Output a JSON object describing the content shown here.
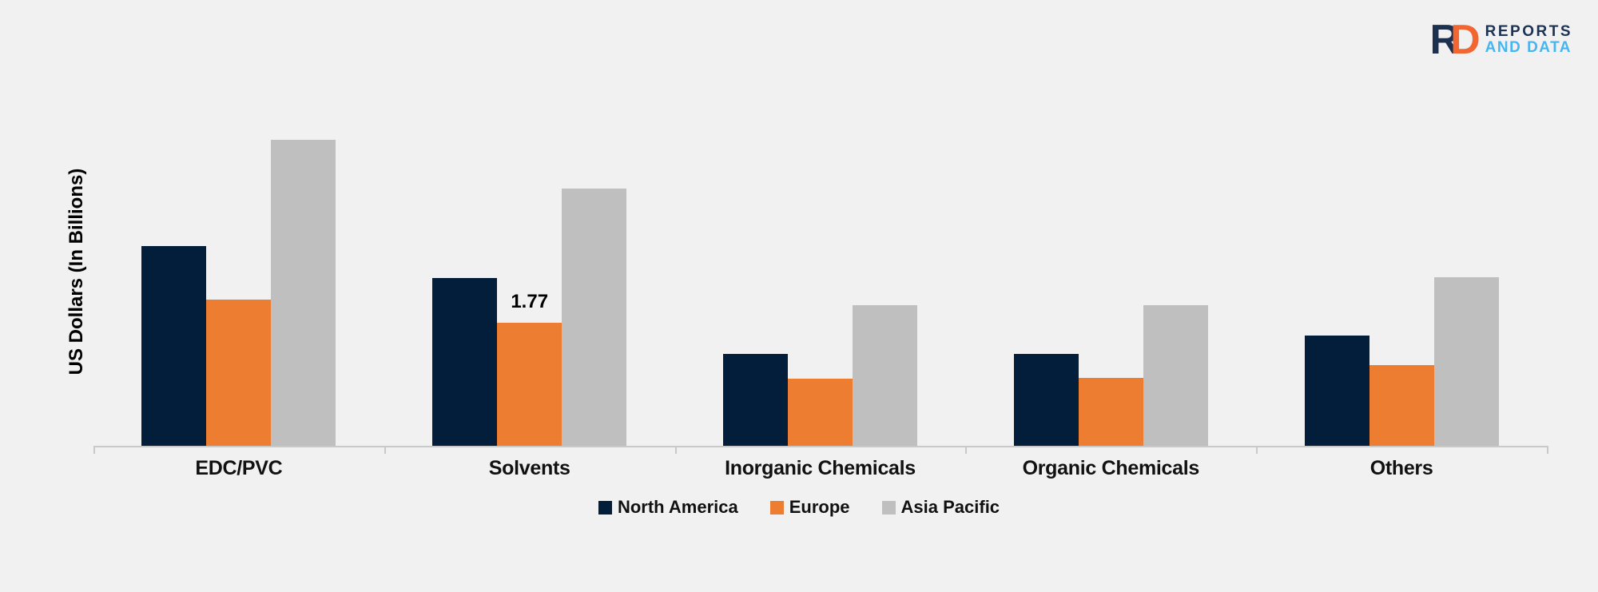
{
  "background": "#f1f1f2",
  "logo": {
    "mark_r": "R",
    "mark_d": "D",
    "line1": "REPORTS",
    "line2": "AND DATA",
    "colors": {
      "mark_r": "#1c3150",
      "mark_d": "#f26631",
      "line1": "#1c3353",
      "line2": "#45b6ef"
    }
  },
  "chart_data": {
    "type": "bar",
    "title": "",
    "xlabel": "",
    "ylabel": "US Dollars (In Billions)",
    "ylim": [
      0,
      4.6
    ],
    "grid": false,
    "legend_position": "bottom",
    "axis_color": "#c9c9c9",
    "categories": [
      "EDC/PVC",
      "Solvents",
      "Inorganic Chemicals",
      "Organic Chemicals",
      "Others"
    ],
    "series": [
      {
        "name": "North America",
        "color": "#031e3b",
        "values": [
          2.87,
          2.41,
          1.32,
          1.32,
          1.59
        ]
      },
      {
        "name": "Europe",
        "color": "#ec7d31",
        "values": [
          2.1,
          1.77,
          0.97,
          0.98,
          1.16
        ]
      },
      {
        "name": "Asia Pacific",
        "color": "#bfbfbf",
        "values": [
          4.41,
          3.7,
          2.02,
          2.03,
          2.43
        ]
      }
    ],
    "data_labels": [
      {
        "series": "Europe",
        "category": "Solvents",
        "text": "1.77"
      }
    ]
  }
}
